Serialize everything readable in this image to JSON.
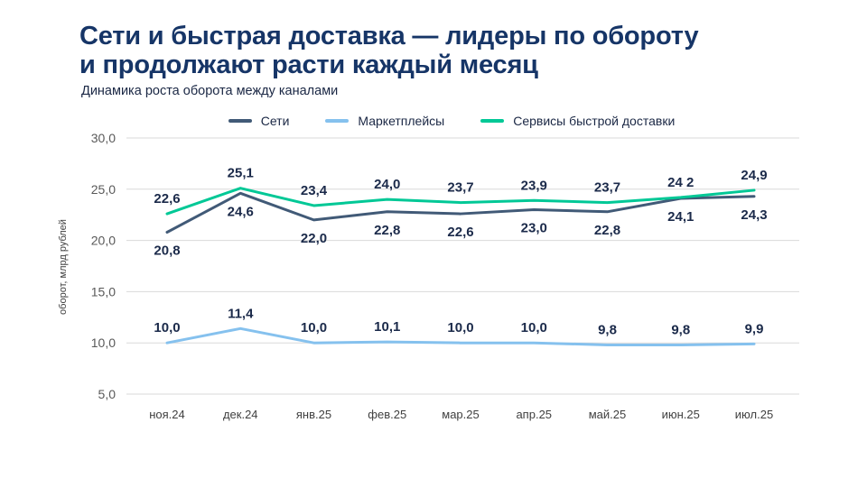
{
  "header": {
    "title_line1": "Сети и быстрая доставка — лидеры по обороту",
    "title_line2": "и продолжают расти каждый месяц",
    "subtitle": "Динамика роста оборота между каналами"
  },
  "colors": {
    "title": "#163567",
    "grid": "#d9d9d9",
    "data_label": "#1b2a4a"
  },
  "chart_data": {
    "type": "line",
    "categories": [
      "ноя.24",
      "дек.24",
      "янв.25",
      "фев.25",
      "мар.25",
      "апр.25",
      "май.25",
      "июн.25",
      "июл.25"
    ],
    "series": [
      {
        "name": "Сети",
        "color": "#415a77",
        "values": [
          20.8,
          24.6,
          22.0,
          22.8,
          22.6,
          23.0,
          22.8,
          24.1,
          24.3
        ],
        "labels": [
          "20,8",
          "24,6",
          "22,0",
          "22,8",
          "22,6",
          "23,0",
          "22,8",
          "24,1",
          "24,3"
        ],
        "label_position": "below"
      },
      {
        "name": "Маркетплейсы",
        "color": "#85c1ee",
        "values": [
          10.0,
          11.4,
          10.0,
          10.1,
          10.0,
          10.0,
          9.8,
          9.8,
          9.9
        ],
        "labels": [
          "10,0",
          "11,4",
          "10,0",
          "10,1",
          "10,0",
          "10,0",
          "9,8",
          "9,8",
          "9,9"
        ],
        "label_position": "above"
      },
      {
        "name": "Сервисы быстрой доставки",
        "color": "#00c896",
        "values": [
          22.6,
          25.1,
          23.4,
          24.0,
          23.7,
          23.9,
          23.7,
          24.2,
          24.9
        ],
        "labels": [
          "22,6",
          "25,1",
          "23,4",
          "24,0",
          "23,7",
          "23,9",
          "23,7",
          "24 2",
          "24,9"
        ],
        "label_position": "above"
      }
    ],
    "ylabel": "оборот, млрд рублей",
    "ylim": [
      5,
      30
    ],
    "yticks": [
      {
        "value": 30,
        "label": "30,0"
      },
      {
        "value": 25,
        "label": "25,0"
      },
      {
        "value": 20,
        "label": "20,0"
      },
      {
        "value": 15,
        "label": "15,0"
      },
      {
        "value": 10,
        "label": "10,0"
      },
      {
        "value": 5,
        "label": "5,0"
      }
    ],
    "grid": true,
    "legend_position": "top"
  }
}
